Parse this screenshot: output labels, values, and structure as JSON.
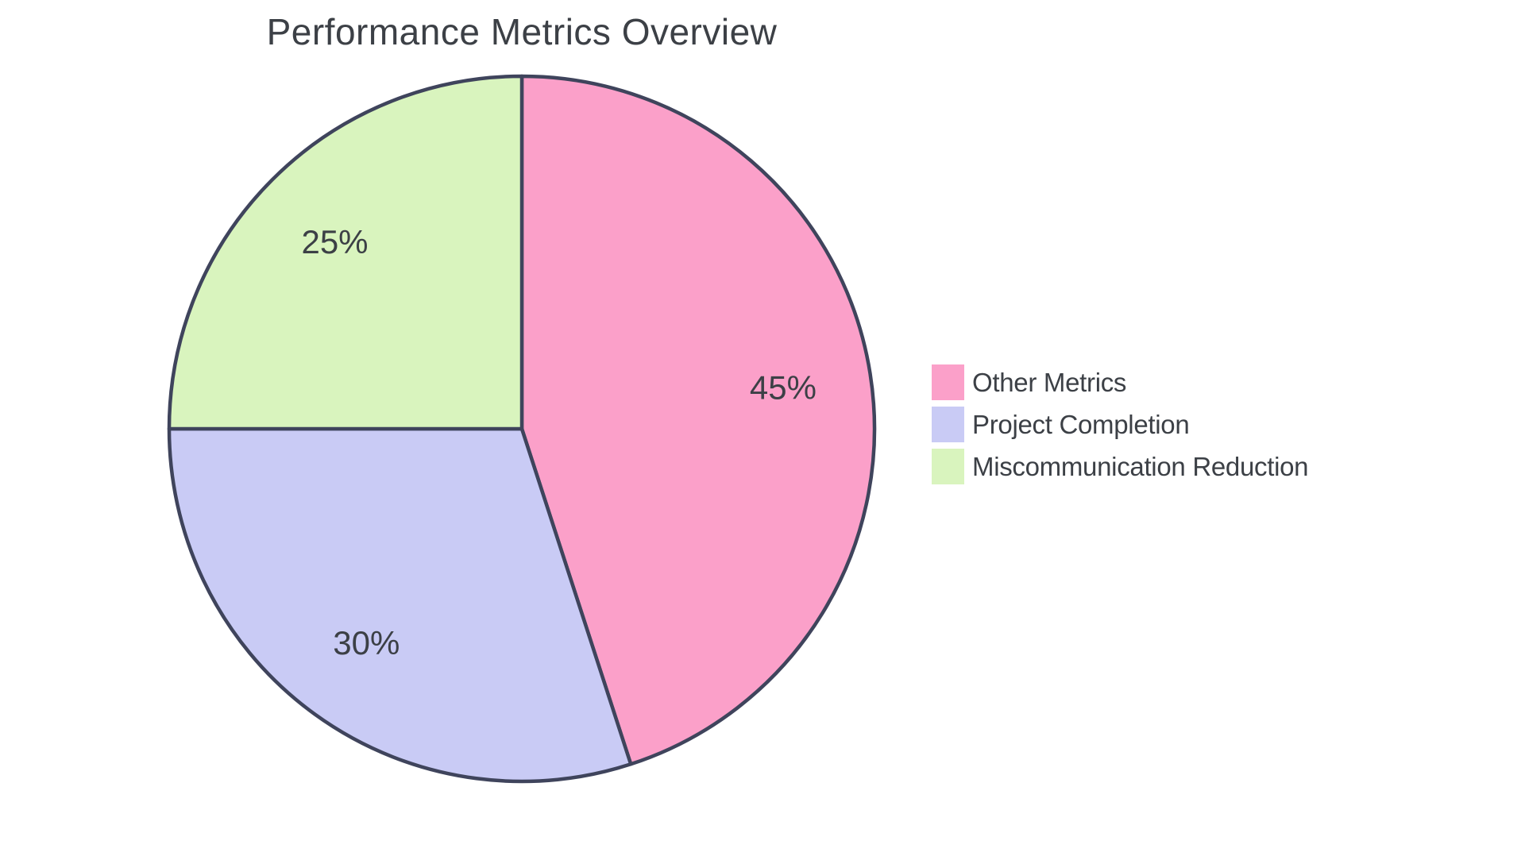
{
  "chart_data": {
    "type": "pie",
    "title": "Performance Metrics Overview",
    "labels": [
      "Other Metrics",
      "Project Completion",
      "Miscommunication Reduction"
    ],
    "values": [
      45,
      30,
      25
    ],
    "percent_labels": [
      "45%",
      "30%",
      "25%"
    ],
    "colors": [
      "#FBA0C9",
      "#C9CBF5",
      "#D9F4BE"
    ],
    "slice_edge_color": "#3F445C",
    "text_color": "#3C4046",
    "total": 100,
    "start_angle": "top",
    "direction": "clockwise",
    "legend_position": "right",
    "background_color": "#ffffff"
  }
}
